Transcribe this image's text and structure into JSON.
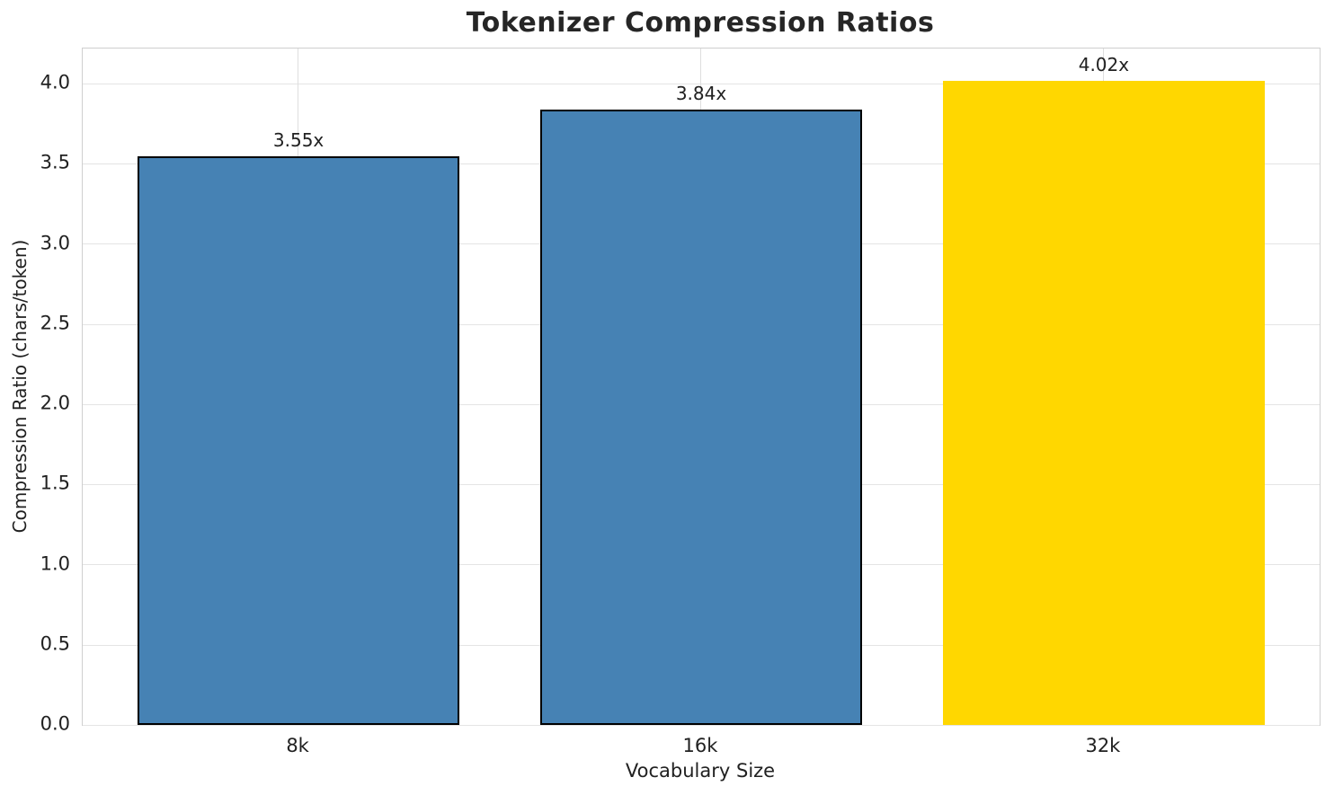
{
  "chart_data": {
    "type": "bar",
    "title": "Tokenizer Compression Ratios",
    "xlabel": "Vocabulary Size",
    "ylabel": "Compression Ratio (chars/token)",
    "categories": [
      "8k",
      "16k",
      "32k"
    ],
    "values": [
      3.55,
      3.84,
      4.02
    ],
    "bar_labels": [
      "3.55x",
      "3.84x",
      "4.02x"
    ],
    "bar_colors": [
      "#4682B4",
      "#4682B4",
      "#FFD700"
    ],
    "bar_edge_colors": [
      "#000000",
      "#000000",
      "none"
    ],
    "ylim": [
      0,
      4.22
    ],
    "yticks": [
      0,
      0.5,
      1,
      1.5,
      2,
      2.5,
      3,
      3.5,
      4
    ],
    "ytick_labels": [
      "0.0",
      "0.5",
      "1.0",
      "1.5",
      "2.0",
      "2.5",
      "3.0",
      "3.5",
      "4.0"
    ],
    "grid": true,
    "legend_position": "none",
    "style": {
      "grid_color_h": "#e4e4e4",
      "grid_color_v": "#dedede",
      "spine_color": "#cfcfcf",
      "text_color": "#212121",
      "title_color": "#262626",
      "background": "#ffffff"
    }
  }
}
